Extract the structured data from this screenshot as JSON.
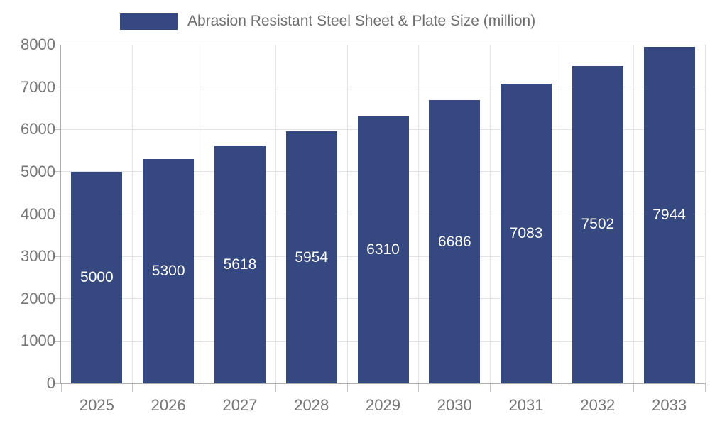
{
  "legend": {
    "label": "Abrasion Resistant Steel Sheet & Plate Size (million)"
  },
  "colors": {
    "bar": "#35487F",
    "grid": "#E3E3E3",
    "axis": "#ADADAD",
    "tick": "#C4C4C4",
    "tick_text": "#757575",
    "legend_text": "#6E6E6E",
    "bar_label_text": "#FFFFFF",
    "background": "#FFFFFF"
  },
  "chart_data": {
    "type": "bar",
    "title": "",
    "xlabel": "",
    "ylabel": "",
    "categories": [
      "2025",
      "2026",
      "2027",
      "2028",
      "2029",
      "2030",
      "2031",
      "2032",
      "2033"
    ],
    "values": [
      5000,
      5300,
      5618,
      5954,
      6310,
      6686,
      7083,
      7502,
      7944
    ],
    "bar_labels": [
      "5000",
      "5300",
      "5618",
      "5954",
      "6310",
      "6686",
      "7083",
      "7502",
      "7944"
    ],
    "ytick_labels": [
      "0",
      "1000",
      "2000",
      "3000",
      "4000",
      "5000",
      "6000",
      "7000",
      "8000"
    ],
    "ylim": [
      0,
      8000
    ],
    "ytick_step": 1000,
    "grid": true,
    "legend": [
      "Abrasion Resistant Steel Sheet & Plate Size (million)"
    ],
    "legend_position": "top",
    "bar_label_position": "inside-center"
  }
}
